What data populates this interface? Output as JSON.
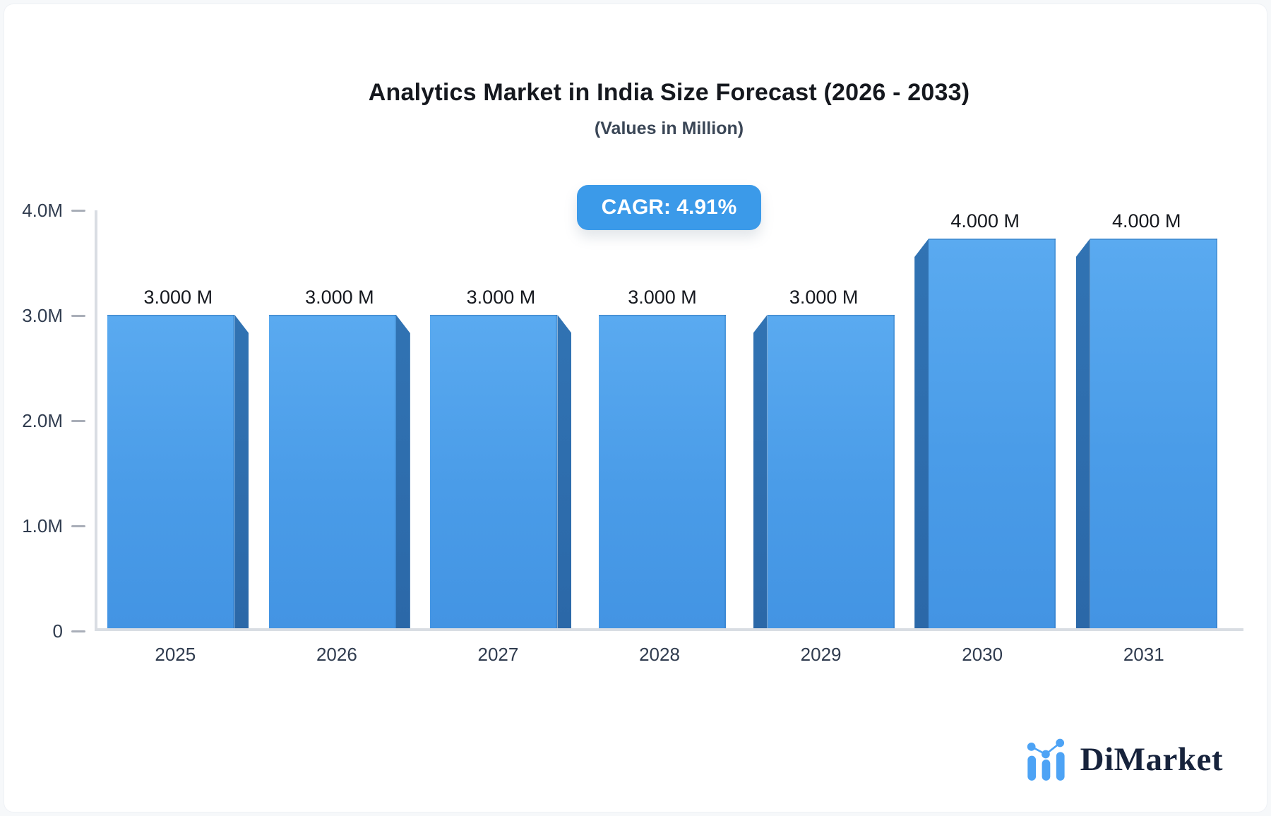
{
  "page": {
    "title": "Analytics Market in India Size Forecast (2026 - 2033)",
    "subtitle": "(Values in Million)",
    "cagr_label": "CAGR: 4.91%"
  },
  "brand": {
    "name": "DiMarket",
    "icon": "bar-line-chart-icon"
  },
  "colors": {
    "bar_face": "#4a9ce8",
    "bar_side_3d": "#2d6cab",
    "badge_bg": "#3b9ae9",
    "badge_text": "#ffffff",
    "axis_line": "#d9dde3",
    "tick_mark": "#a9aeb8",
    "axis_text": "#303c4f",
    "title_text": "#15181e",
    "brand_text": "#17233c",
    "brand_icon_blue": "#4da3f5"
  },
  "chart_data": {
    "type": "bar",
    "title": "Analytics Market in India Size Forecast (2026 - 2033)",
    "subtitle": "(Values in Million)",
    "unit": "Million",
    "cagr": "4.91%",
    "categories": [
      "2025",
      "2026",
      "2027",
      "2028",
      "2029",
      "2030",
      "2031"
    ],
    "values": [
      3.0,
      3.0,
      3.0,
      3.0,
      3.0,
      4.0,
      4.0
    ],
    "value_labels": [
      "3.000 M",
      "3.000 M",
      "3.000 M",
      "3.000 M",
      "3.000 M",
      "4.000 M",
      "4.000 M"
    ],
    "ylim": [
      0,
      4
    ],
    "yticks": [
      {
        "label": "0",
        "value": 0
      },
      {
        "label": "1.0M",
        "value": 1
      },
      {
        "label": "2.0M",
        "value": 2
      },
      {
        "label": "3.0M",
        "value": 3
      },
      {
        "label": "4.0M",
        "value": 4
      }
    ],
    "grid": false,
    "legend": false,
    "xlabel": "",
    "ylabel": ""
  }
}
